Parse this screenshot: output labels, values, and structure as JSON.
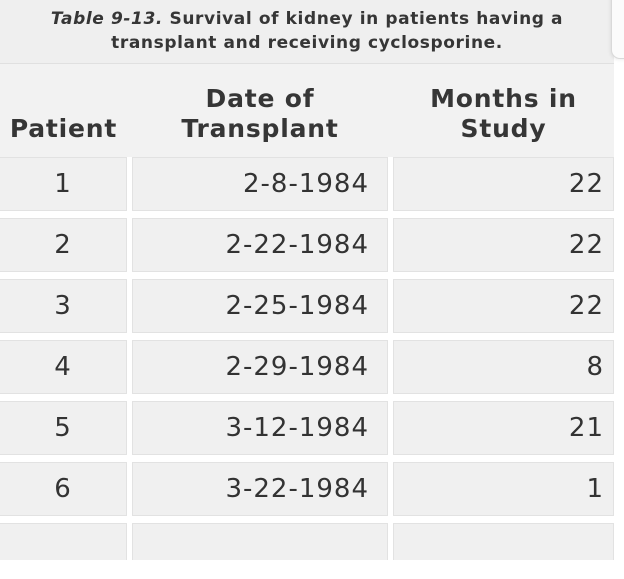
{
  "caption": {
    "label": "Table 9-13.",
    "line1": "Survival of kidney in patients having a",
    "line2": "transplant and receiving cyclosporine."
  },
  "table": {
    "headers": [
      "Patient",
      "Date of\nTransplant",
      "Months in\nStudy"
    ],
    "rows": [
      {
        "patient": "1",
        "date": "2-8-1984",
        "months": "22"
      },
      {
        "patient": "2",
        "date": "2-22-1984",
        "months": "22"
      },
      {
        "patient": "3",
        "date": "2-25-1984",
        "months": "22"
      },
      {
        "patient": "4",
        "date": "2-29-1984",
        "months": "8"
      },
      {
        "patient": "5",
        "date": "3-12-1984",
        "months": "21"
      },
      {
        "patient": "6",
        "date": "3-22-1984",
        "months": "1"
      },
      {
        "patient": "",
        "date": "",
        "months": ""
      }
    ]
  },
  "colors": {
    "caption_band_bg": "#efefef",
    "header_bg": "#f2f2f2",
    "cell_bg": "#f0f0f0",
    "cell_border": "#e2e2e2",
    "text": "#333333",
    "page_bg": "#ffffff"
  }
}
